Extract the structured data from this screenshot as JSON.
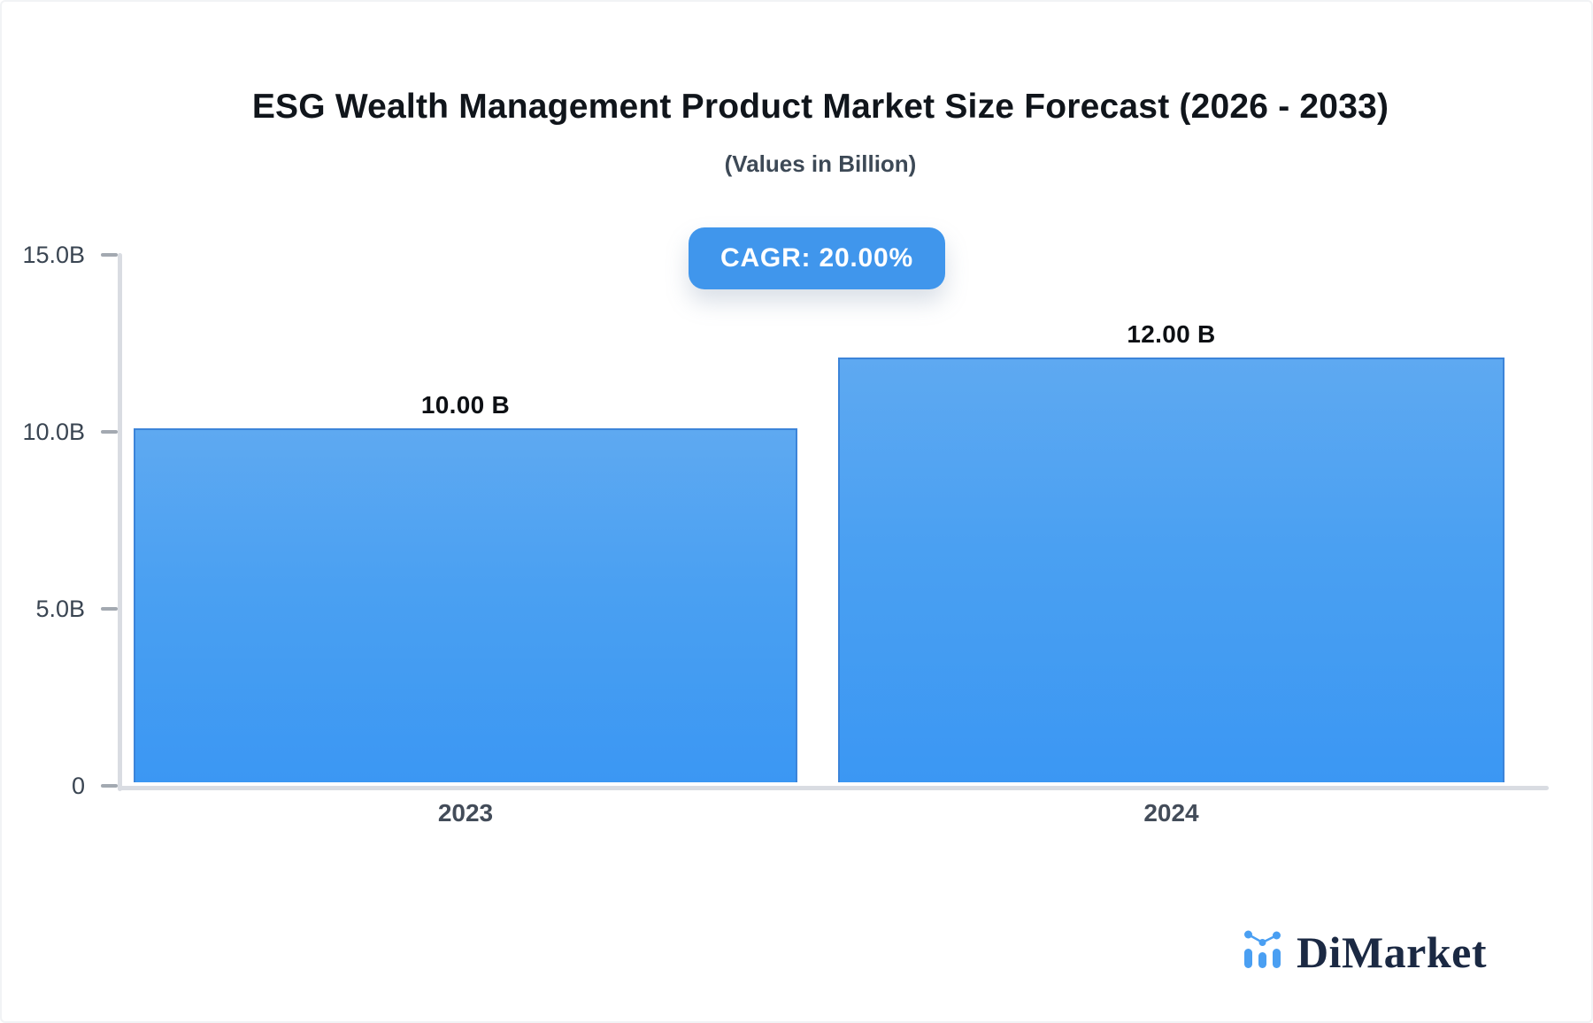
{
  "header": {
    "title": "ESG Wealth Management Product Market Size Forecast (2026 - 2033)",
    "subtitle": "(Values in Billion)",
    "cagr_label": "CAGR: 20.00%"
  },
  "chart_data": {
    "type": "bar",
    "categories": [
      "2023",
      "2024"
    ],
    "values": [
      10.0,
      12.0
    ],
    "value_labels": [
      "10.00 B",
      "12.00 B"
    ],
    "title": "ESG Wealth Management Product Market Size Forecast (2026 - 2033)",
    "subtitle": "(Values in Billion)",
    "cagr": "20.00%",
    "xlabel": "",
    "ylabel": "",
    "ylim": [
      0,
      15
    ],
    "ytick_labels": [
      "15.0B",
      "10.0B",
      "5.0B",
      "0"
    ],
    "ytick_values": [
      15,
      10,
      5,
      0
    ],
    "grid": false,
    "legend": "none",
    "bar_color_top": "#5ea9f1",
    "bar_color_bottom": "#3b97f3",
    "bar_border_color": "#3c84d9",
    "axis_color": "#d9dce2"
  },
  "branding": {
    "logo_text": "DiMarket",
    "logo_icon": "mini-bar-line-chart-icon",
    "logo_text_color": "#1b2943",
    "logo_icon_color": "#4a9ff2"
  },
  "colors": {
    "badge_background": "#4096ec",
    "badge_text": "#ffffff",
    "title_text": "#10151b",
    "subtitle_text": "#3d4956",
    "tick_text": "#3a4552"
  }
}
